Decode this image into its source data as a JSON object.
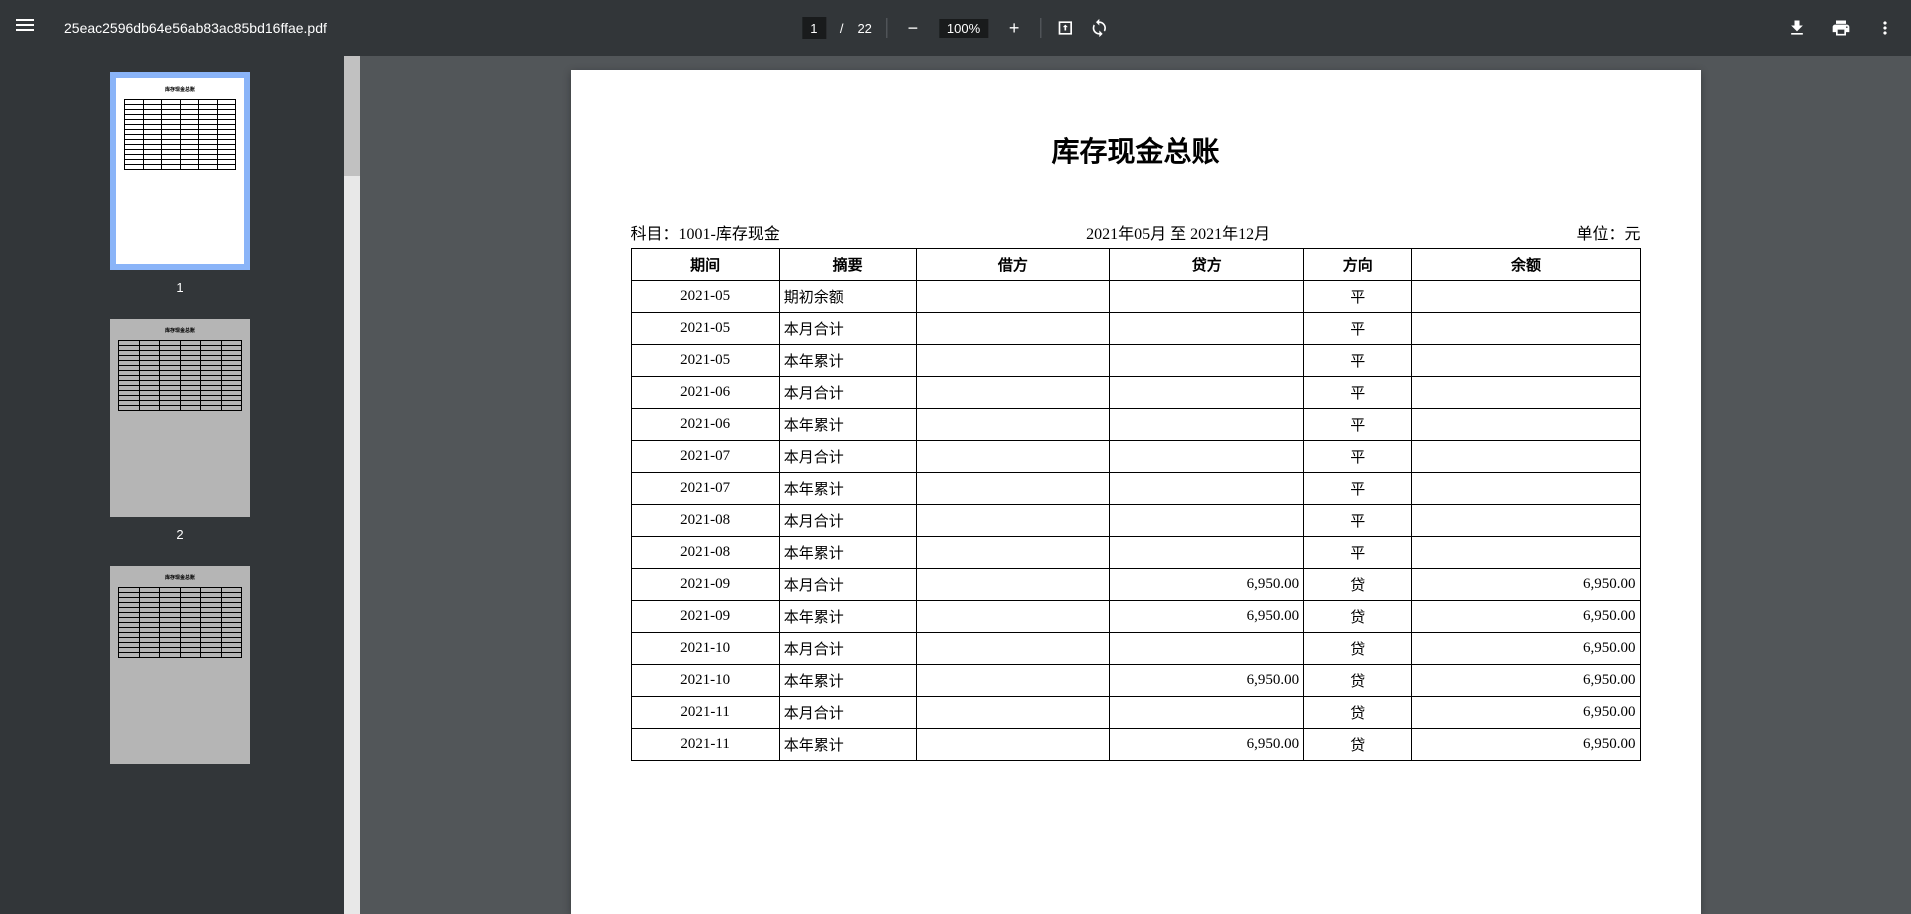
{
  "toolbar": {
    "filename": "25eac2596db64e56ab83ac85bd16ffae.pdf",
    "page_current": "1",
    "page_separator": "/",
    "page_total": "22",
    "zoom": "100%"
  },
  "thumbnails": [
    {
      "num": "1",
      "selected": true
    },
    {
      "num": "2",
      "selected": false
    },
    {
      "num": "",
      "selected": false
    }
  ],
  "document": {
    "title": "库存现金总账",
    "subject_label": "科目：",
    "subject_value": "1001-库存现金",
    "period": "2021年05月 至 2021年12月",
    "unit_label": "单位：",
    "unit_value": "元",
    "columns": {
      "period": "期间",
      "summary": "摘要",
      "debit": "借方",
      "credit": "贷方",
      "direction": "方向",
      "balance": "余额"
    },
    "col_widths": {
      "period": "130px",
      "summary": "120px",
      "debit": "170px",
      "credit": "170px",
      "direction": "95px",
      "balance": "200px"
    },
    "rows": [
      {
        "period": "2021-05",
        "summary": "期初余额",
        "debit": "",
        "credit": "",
        "direction": "平",
        "balance": ""
      },
      {
        "period": "2021-05",
        "summary": "本月合计",
        "debit": "",
        "credit": "",
        "direction": "平",
        "balance": ""
      },
      {
        "period": "2021-05",
        "summary": "本年累计",
        "debit": "",
        "credit": "",
        "direction": "平",
        "balance": ""
      },
      {
        "period": "2021-06",
        "summary": "本月合计",
        "debit": "",
        "credit": "",
        "direction": "平",
        "balance": ""
      },
      {
        "period": "2021-06",
        "summary": "本年累计",
        "debit": "",
        "credit": "",
        "direction": "平",
        "balance": ""
      },
      {
        "period": "2021-07",
        "summary": "本月合计",
        "debit": "",
        "credit": "",
        "direction": "平",
        "balance": ""
      },
      {
        "period": "2021-07",
        "summary": "本年累计",
        "debit": "",
        "credit": "",
        "direction": "平",
        "balance": ""
      },
      {
        "period": "2021-08",
        "summary": "本月合计",
        "debit": "",
        "credit": "",
        "direction": "平",
        "balance": ""
      },
      {
        "period": "2021-08",
        "summary": "本年累计",
        "debit": "",
        "credit": "",
        "direction": "平",
        "balance": ""
      },
      {
        "period": "2021-09",
        "summary": "本月合计",
        "debit": "",
        "credit": "6,950.00",
        "direction": "贷",
        "balance": "6,950.00"
      },
      {
        "period": "2021-09",
        "summary": "本年累计",
        "debit": "",
        "credit": "6,950.00",
        "direction": "贷",
        "balance": "6,950.00"
      },
      {
        "period": "2021-10",
        "summary": "本月合计",
        "debit": "",
        "credit": "",
        "direction": "贷",
        "balance": "6,950.00"
      },
      {
        "period": "2021-10",
        "summary": "本年累计",
        "debit": "",
        "credit": "6,950.00",
        "direction": "贷",
        "balance": "6,950.00"
      },
      {
        "period": "2021-11",
        "summary": "本月合计",
        "debit": "",
        "credit": "",
        "direction": "贷",
        "balance": "6,950.00"
      },
      {
        "period": "2021-11",
        "summary": "本年累计",
        "debit": "",
        "credit": "6,950.00",
        "direction": "贷",
        "balance": "6,950.00"
      }
    ]
  }
}
